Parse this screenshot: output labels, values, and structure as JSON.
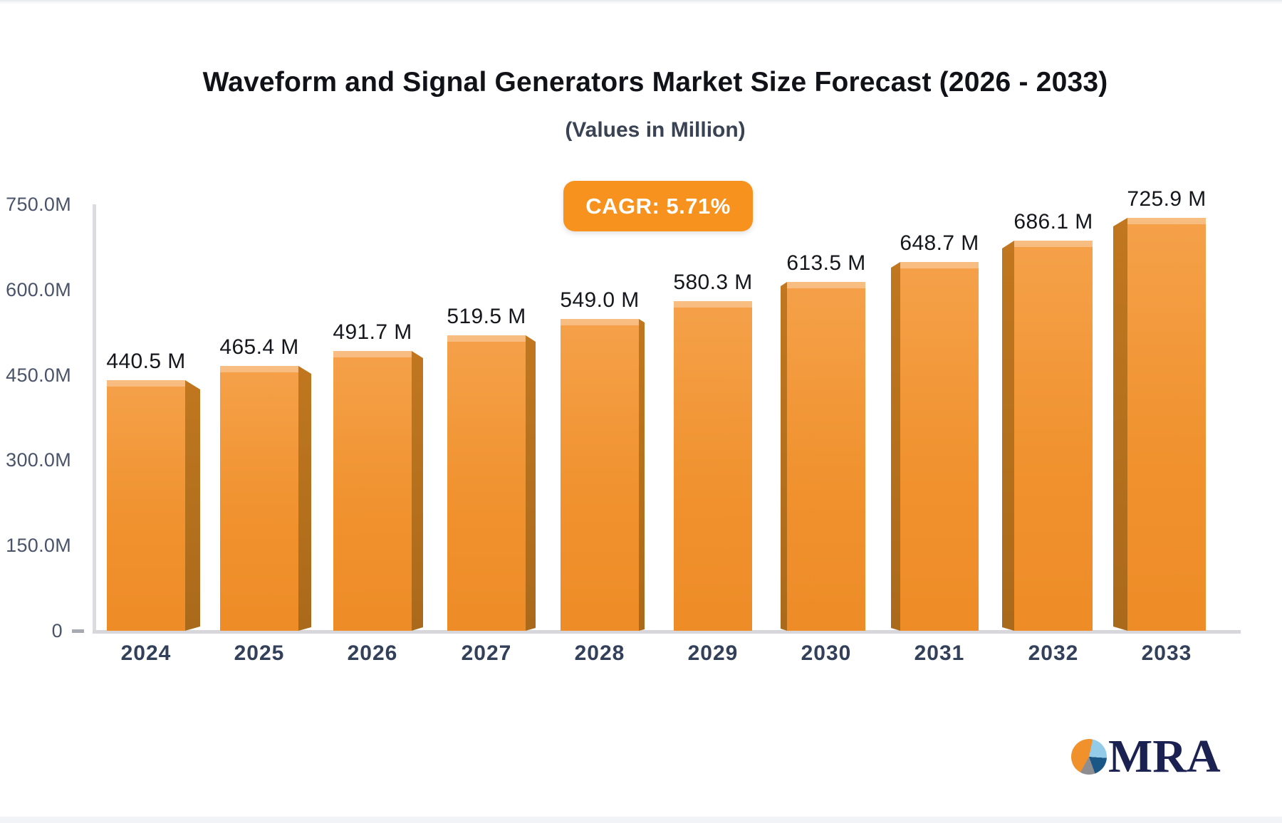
{
  "header": {
    "title": "Waveform and Signal Generators Market Size Forecast (2026 - 2033)",
    "subtitle": "(Values in Million)",
    "cagr_badge": "CAGR: 5.71%",
    "badge_color": "#F6921D"
  },
  "chart_data": {
    "type": "bar",
    "title": "Waveform and Signal Generators Market Size Forecast (2026 - 2033)",
    "subtitle": "(Values in Million)",
    "annotation": "CAGR: 5.71%",
    "cagr_percent": 5.71,
    "categories": [
      "2024",
      "2025",
      "2026",
      "2027",
      "2028",
      "2029",
      "2030",
      "2031",
      "2032",
      "2033"
    ],
    "values": [
      440.5,
      465.4,
      491.7,
      519.5,
      549.0,
      580.3,
      613.5,
      648.7,
      686.1,
      725.9
    ],
    "value_labels": [
      "440.5 M",
      "465.4 M",
      "491.7 M",
      "519.5 M",
      "549.0 M",
      "580.3 M",
      "613.5 M",
      "648.7 M",
      "686.1 M",
      "725.9 M"
    ],
    "unit": "Million",
    "xlabel": "",
    "ylabel": "",
    "ylim": [
      0,
      750
    ],
    "ytick_values": [
      0,
      150,
      300,
      450,
      600,
      750
    ],
    "ytick_labels": [
      "0",
      "150.0M",
      "300.0M",
      "450.0M",
      "600.0M",
      "750.0M"
    ],
    "grid": false,
    "legend_position": "none",
    "bar_style": "3d",
    "bar_face_color": "#F0922F",
    "bar_face_highlight": "#F5A14A",
    "bar_side_color": "#B06E1C",
    "axis_line_color": "#D6D6DB",
    "label_color": "#15171C",
    "tick_color": "#49536A"
  },
  "logo": {
    "text": "MRA",
    "pie_colors": {
      "orange": "#F0912C",
      "light_blue": "#93CBE9",
      "blue": "#1B5786",
      "gray": "#8D8D92"
    },
    "text_color": "#1B2150"
  }
}
